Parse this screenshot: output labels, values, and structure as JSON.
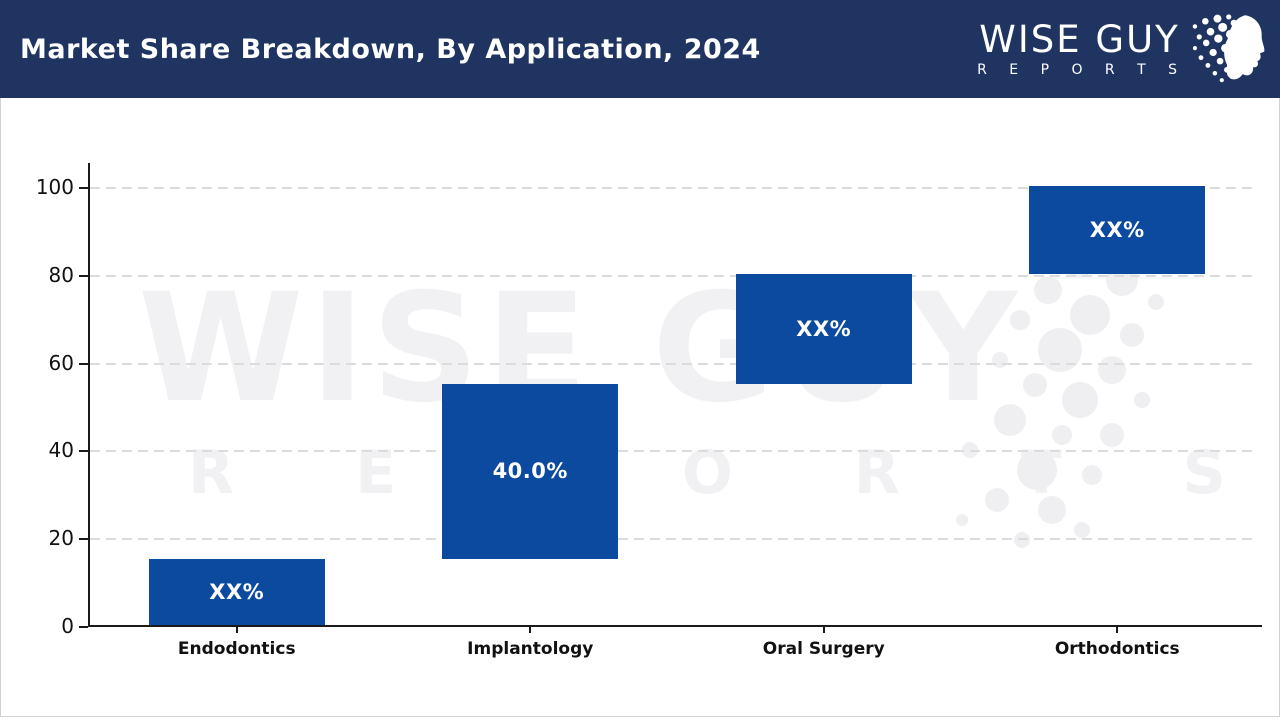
{
  "header": {
    "title": "Market Share Breakdown, By Application, 2024",
    "background": "#1f3461",
    "logo": {
      "line1": "WISE GUY",
      "line2": "R E P O R T S"
    }
  },
  "watermark": {
    "line1": "WISE GUY",
    "line2": "R E P O R T S"
  },
  "chart_data": {
    "type": "bar",
    "subtype": "waterfall",
    "title": "Market Share Breakdown, By Application, 2024",
    "categories": [
      "Endodontics",
      "Implantology",
      "Oral Surgery",
      "Orthodontics"
    ],
    "bars": [
      {
        "category": "Endodontics",
        "start": 0,
        "end": 15,
        "label": "XX%"
      },
      {
        "category": "Implantology",
        "start": 15,
        "end": 55,
        "label": "40.0%"
      },
      {
        "category": "Oral Surgery",
        "start": 55,
        "end": 80,
        "label": "XX%"
      },
      {
        "category": "Orthodontics",
        "start": 80,
        "end": 100,
        "label": "XX%"
      }
    ],
    "xlabel": "",
    "ylabel": "",
    "yticks": [
      0,
      20,
      40,
      60,
      80,
      100
    ],
    "ylim": [
      0,
      105
    ],
    "grid": "horizontal-dashed",
    "legend": "none",
    "bar_color": "#0b4a9e",
    "bar_label_color": "#ffffff",
    "axis_color": "#1a1a1a"
  }
}
